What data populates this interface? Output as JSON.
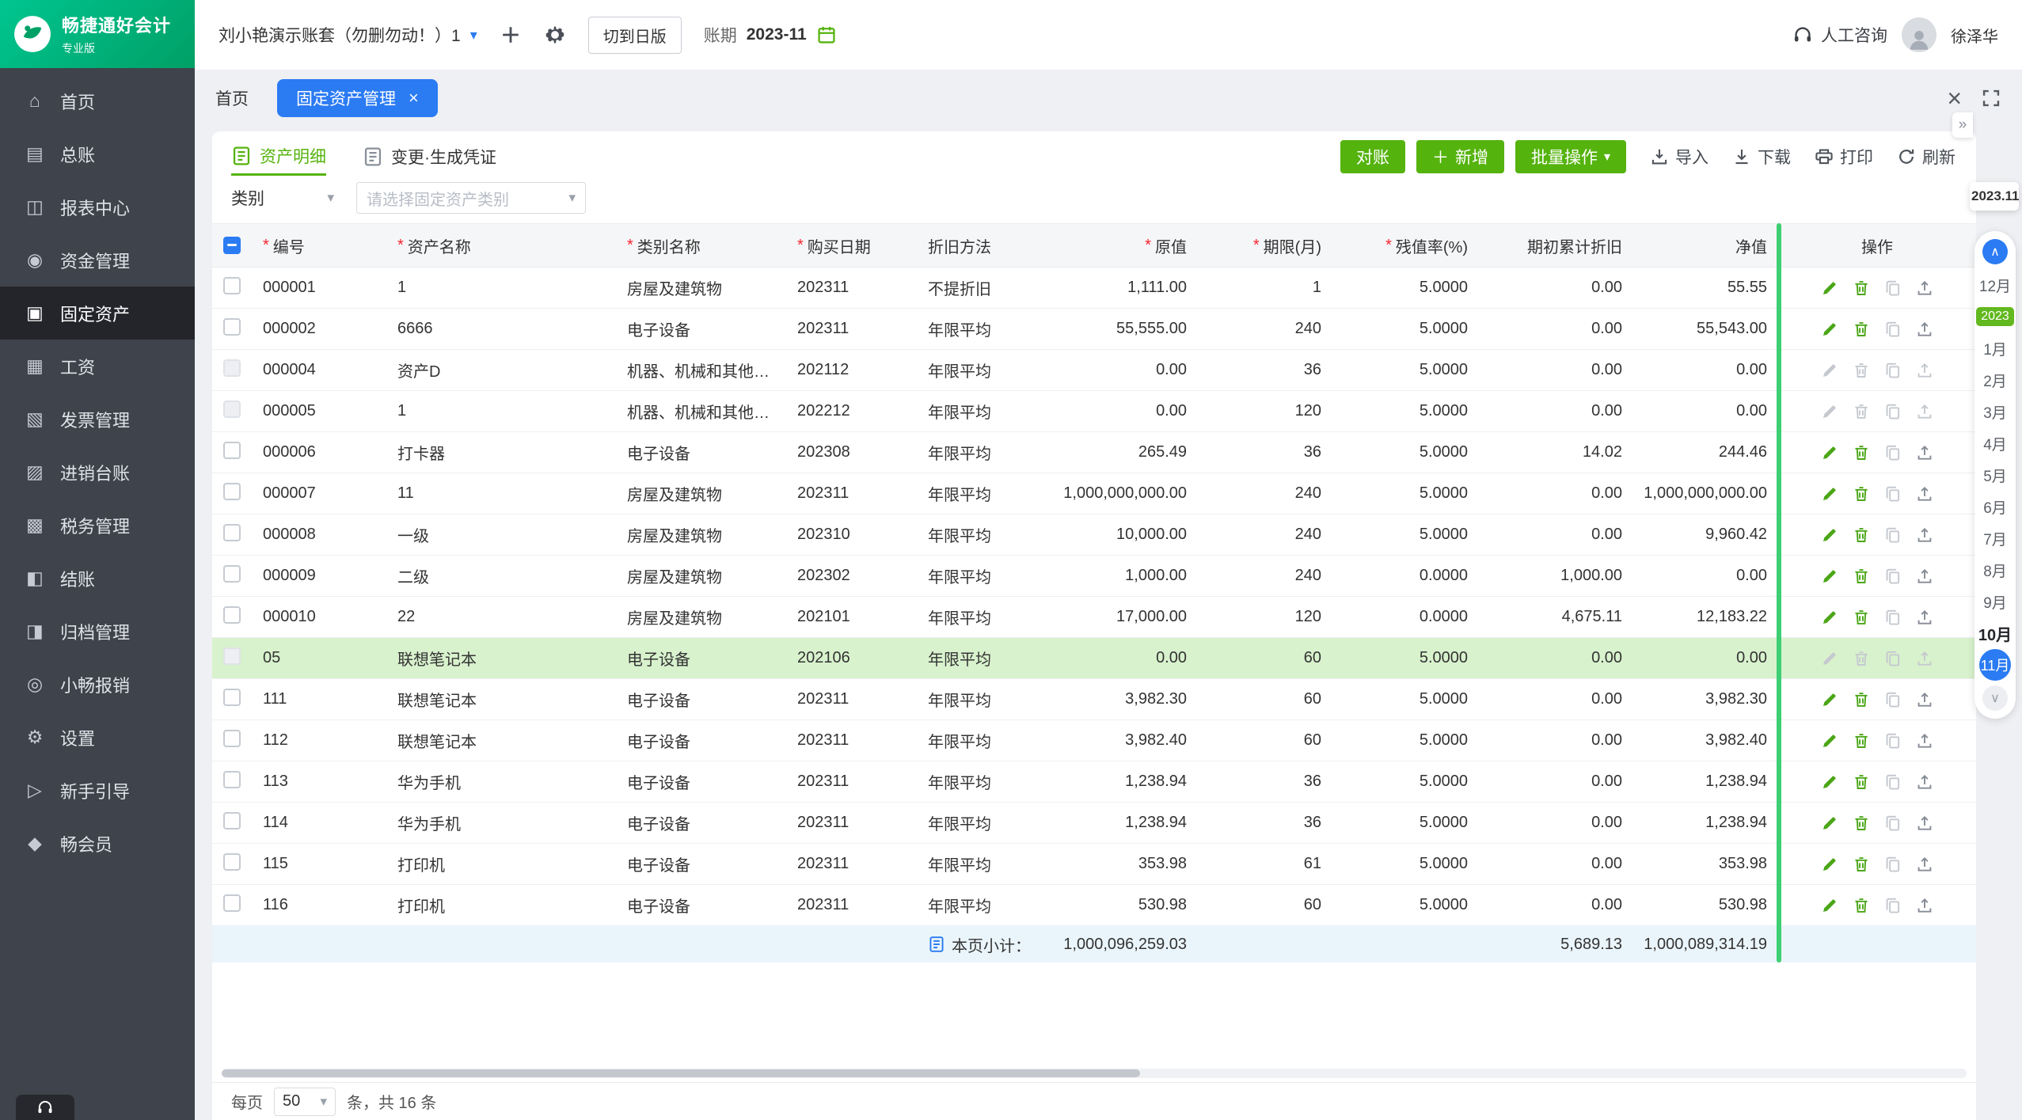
{
  "brand": {
    "name": "畅捷通好会计",
    "edition": "专业版"
  },
  "topbar": {
    "account_set": "刘小艳演示账套（勿删勿动！）1",
    "switch_btn": "切到日版",
    "period_label": "账期",
    "period_value": "2023-11",
    "consult": "人工咨询",
    "username": "徐泽华"
  },
  "tabbar": {
    "tabs": [
      {
        "label": "首页",
        "active": false
      },
      {
        "label": "固定资产管理",
        "active": true,
        "closable": true
      }
    ]
  },
  "sidebar": {
    "items": [
      {
        "id": "home",
        "label": "首页",
        "glyph": "⌂"
      },
      {
        "id": "general-ledger",
        "label": "总账",
        "glyph": "▤"
      },
      {
        "id": "report-center",
        "label": "报表中心",
        "glyph": "◫"
      },
      {
        "id": "fund-management",
        "label": "资金管理",
        "glyph": "◉"
      },
      {
        "id": "fixed-assets",
        "label": "固定资产",
        "glyph": "▣",
        "active": true
      },
      {
        "id": "payroll",
        "label": "工资",
        "glyph": "▦"
      },
      {
        "id": "invoice-management",
        "label": "发票管理",
        "glyph": "▧"
      },
      {
        "id": "purchase-sale-ledger",
        "label": "进销台账",
        "glyph": "▨"
      },
      {
        "id": "tax-management",
        "label": "税务管理",
        "glyph": "▩"
      },
      {
        "id": "closing",
        "label": "结账",
        "glyph": "◧"
      },
      {
        "id": "archive-management",
        "label": "归档管理",
        "glyph": "◨"
      },
      {
        "id": "reimbursement",
        "label": "小畅报销",
        "glyph": "◎"
      },
      {
        "id": "settings",
        "label": "设置",
        "glyph": "⚙"
      },
      {
        "id": "beginner-guide",
        "label": "新手引导",
        "glyph": "▷"
      },
      {
        "id": "membership",
        "label": "畅会员",
        "glyph": "◆"
      }
    ]
  },
  "toolbar": {
    "subtabs": [
      {
        "label": "资产明细",
        "active": true
      },
      {
        "label": "变更·生成凭证",
        "active": false
      }
    ],
    "primary_buttons": [
      {
        "id": "reconcile",
        "label": "对账"
      },
      {
        "id": "add",
        "label": "新增",
        "icon_before": "＋"
      },
      {
        "id": "batch",
        "label": "批量操作",
        "icon_after": "▾"
      }
    ],
    "tool_buttons": [
      {
        "id": "import",
        "label": "导入",
        "icon": "import"
      },
      {
        "id": "download",
        "label": "下载",
        "icon": "download"
      },
      {
        "id": "print",
        "label": "打印",
        "icon": "print"
      },
      {
        "id": "refresh",
        "label": "刷新",
        "icon": "refresh"
      }
    ]
  },
  "filters": {
    "category_label": "类别",
    "category_placeholder": "请选择固定资产类别"
  },
  "table": {
    "required_marker": "*",
    "ops_label": "操作",
    "ops_icons": [
      "edit",
      "delete",
      "copy",
      "export"
    ],
    "columns": [
      {
        "key": "code",
        "label": "编号",
        "required": true,
        "align": "left"
      },
      {
        "key": "name",
        "label": "资产名称",
        "required": true,
        "align": "left"
      },
      {
        "key": "category",
        "label": "类别名称",
        "required": true,
        "align": "left"
      },
      {
        "key": "purchase_date",
        "label": "购买日期",
        "required": true,
        "align": "left"
      },
      {
        "key": "method",
        "label": "折旧方法",
        "required": false,
        "align": "left"
      },
      {
        "key": "original_value",
        "label": "原值",
        "required": true,
        "align": "right"
      },
      {
        "key": "term_months",
        "label": "期限(月)",
        "required": true,
        "align": "right"
      },
      {
        "key": "residual_rate",
        "label": "残值率(%)",
        "required": true,
        "align": "right"
      },
      {
        "key": "initial_depreciation",
        "label": "期初累计折旧",
        "required": false,
        "align": "right"
      },
      {
        "key": "net_value",
        "label": "净值",
        "required": false,
        "align": "right"
      }
    ],
    "rows": [
      {
        "code": "000001",
        "name": "1",
        "category": "房屋及建筑物",
        "purchase_date": "202311",
        "method": "不提折旧",
        "original_value": "1,111.00",
        "term_months": "1",
        "residual_rate": "5.0000",
        "initial_depreciation": "0.00",
        "net_value": "55.55"
      },
      {
        "code": "000002",
        "name": "6666",
        "category": "电子设备",
        "purchase_date": "202311",
        "method": "年限平均",
        "original_value": "55,555.00",
        "term_months": "240",
        "residual_rate": "5.0000",
        "initial_depreciation": "0.00",
        "net_value": "55,543.00"
      },
      {
        "code": "000004",
        "name": "资产D",
        "category": "机器、机械和其他生...",
        "purchase_date": "202112",
        "method": "年限平均",
        "original_value": "0.00",
        "term_months": "36",
        "residual_rate": "5.0000",
        "initial_depreciation": "0.00",
        "net_value": "0.00",
        "disabled": true
      },
      {
        "code": "000005",
        "name": "1",
        "category": "机器、机械和其他生...",
        "purchase_date": "202212",
        "method": "年限平均",
        "original_value": "0.00",
        "term_months": "120",
        "residual_rate": "5.0000",
        "initial_depreciation": "0.00",
        "net_value": "0.00",
        "disabled": true
      },
      {
        "code": "000006",
        "name": "打卡器",
        "category": "电子设备",
        "purchase_date": "202308",
        "method": "年限平均",
        "original_value": "265.49",
        "term_months": "36",
        "residual_rate": "5.0000",
        "initial_depreciation": "14.02",
        "net_value": "244.46"
      },
      {
        "code": "000007",
        "name": "11",
        "category": "房屋及建筑物",
        "purchase_date": "202311",
        "method": "年限平均",
        "original_value": "1,000,000,000.00",
        "term_months": "240",
        "residual_rate": "5.0000",
        "initial_depreciation": "0.00",
        "net_value": "1,000,000,000.00"
      },
      {
        "code": "000008",
        "name": "一级",
        "category": "房屋及建筑物",
        "purchase_date": "202310",
        "method": "年限平均",
        "original_value": "10,000.00",
        "term_months": "240",
        "residual_rate": "5.0000",
        "initial_depreciation": "0.00",
        "net_value": "9,960.42"
      },
      {
        "code": "000009",
        "name": "二级",
        "category": "房屋及建筑物",
        "purchase_date": "202302",
        "method": "年限平均",
        "original_value": "1,000.00",
        "term_months": "240",
        "residual_rate": "0.0000",
        "initial_depreciation": "1,000.00",
        "net_value": "0.00"
      },
      {
        "code": "000010",
        "name": "22",
        "category": "房屋及建筑物",
        "purchase_date": "202101",
        "method": "年限平均",
        "original_value": "17,000.00",
        "term_months": "120",
        "residual_rate": "0.0000",
        "initial_depreciation": "4,675.11",
        "net_value": "12,183.22"
      },
      {
        "code": "05",
        "name": "联想笔记本",
        "category": "电子设备",
        "purchase_date": "202106",
        "method": "年限平均",
        "original_value": "0.00",
        "term_months": "60",
        "residual_rate": "5.0000",
        "initial_depreciation": "0.00",
        "net_value": "0.00",
        "highlight": true,
        "disabled": true
      },
      {
        "code": "111",
        "name": "联想笔记本",
        "category": "电子设备",
        "purchase_date": "202311",
        "method": "年限平均",
        "original_value": "3,982.30",
        "term_months": "60",
        "residual_rate": "5.0000",
        "initial_depreciation": "0.00",
        "net_value": "3,982.30"
      },
      {
        "code": "112",
        "name": "联想笔记本",
        "category": "电子设备",
        "purchase_date": "202311",
        "method": "年限平均",
        "original_value": "3,982.40",
        "term_months": "60",
        "residual_rate": "5.0000",
        "initial_depreciation": "0.00",
        "net_value": "3,982.40"
      },
      {
        "code": "113",
        "name": "华为手机",
        "category": "电子设备",
        "purchase_date": "202311",
        "method": "年限平均",
        "original_value": "1,238.94",
        "term_months": "36",
        "residual_rate": "5.0000",
        "initial_depreciation": "0.00",
        "net_value": "1,238.94"
      },
      {
        "code": "114",
        "name": "华为手机",
        "category": "电子设备",
        "purchase_date": "202311",
        "method": "年限平均",
        "original_value": "1,238.94",
        "term_months": "36",
        "residual_rate": "5.0000",
        "initial_depreciation": "0.00",
        "net_value": "1,238.94"
      },
      {
        "code": "115",
        "name": "打印机",
        "category": "电子设备",
        "purchase_date": "202311",
        "method": "年限平均",
        "original_value": "353.98",
        "term_months": "61",
        "residual_rate": "5.0000",
        "initial_depreciation": "0.00",
        "net_value": "353.98"
      },
      {
        "code": "116",
        "name": "打印机",
        "category": "电子设备",
        "purchase_date": "202311",
        "method": "年限平均",
        "original_value": "530.98",
        "term_months": "60",
        "residual_rate": "5.0000",
        "initial_depreciation": "0.00",
        "net_value": "530.98"
      }
    ],
    "subtotal": {
      "label": "本页小计：",
      "original_value": "1,000,096,259.03",
      "initial_depreciation": "5,689.13",
      "net_value": "1,000,089,314.19"
    }
  },
  "pagination": {
    "per_page_label": "每页",
    "per_page_value": "50",
    "suffix": "条，共 16 条"
  },
  "period_panel": {
    "current": "2023.11",
    "items": [
      {
        "label": "12月"
      },
      {
        "label": "2023",
        "type": "year"
      },
      {
        "label": "1月"
      },
      {
        "label": "2月"
      },
      {
        "label": "3月"
      },
      {
        "label": "4月"
      },
      {
        "label": "5月"
      },
      {
        "label": "6月"
      },
      {
        "label": "7月"
      },
      {
        "label": "8月"
      },
      {
        "label": "9月"
      },
      {
        "label": "10月",
        "emph": true
      },
      {
        "label": "11月",
        "selected": true
      }
    ]
  },
  "icons": {
    "chevron_down": "▾",
    "chevron_up": "∧",
    "chevron_down_small": "∨",
    "close": "×",
    "collapse": "»"
  }
}
